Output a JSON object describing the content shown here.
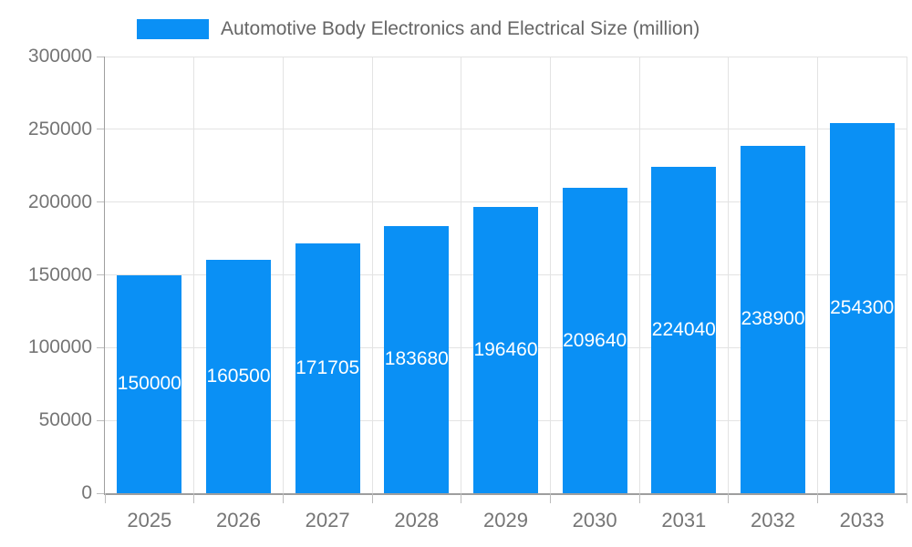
{
  "legend": {
    "label": "Automotive Body Electronics and Electrical Size (million)"
  },
  "chart_data": {
    "type": "bar",
    "title": "Automotive Body Electronics and Electrical Size (million)",
    "series_name": "Automotive Body Electronics and Electrical Size (million)",
    "categories": [
      "2025",
      "2026",
      "2027",
      "2028",
      "2029",
      "2030",
      "2031",
      "2032",
      "2033"
    ],
    "values": [
      150000,
      160500,
      171705,
      183680,
      196460,
      209640,
      224040,
      238900,
      254300
    ],
    "value_labels": [
      "150000",
      "160500",
      "171705",
      "183680",
      "196460",
      "209640",
      "224040",
      "238900",
      "254300"
    ],
    "xlabel": "",
    "ylabel": "",
    "ylim": [
      0,
      300000
    ],
    "yticks": [
      0,
      50000,
      100000,
      150000,
      200000,
      250000,
      300000
    ],
    "ytick_labels": [
      "0",
      "50000",
      "100000",
      "150000",
      "200000",
      "250000",
      "300000"
    ],
    "grid": "both",
    "legend_position": "top-center",
    "value_label_position": "inside-center",
    "colors": {
      "bar": "#0a90f5",
      "value_label": "#ffffff",
      "axis_label": "#757575",
      "legend_text": "#666666",
      "gridline": "#e3e3e3",
      "axis_line": "#9e9e9e",
      "tick": "#bdbdbd",
      "background": "#ffffff"
    }
  }
}
